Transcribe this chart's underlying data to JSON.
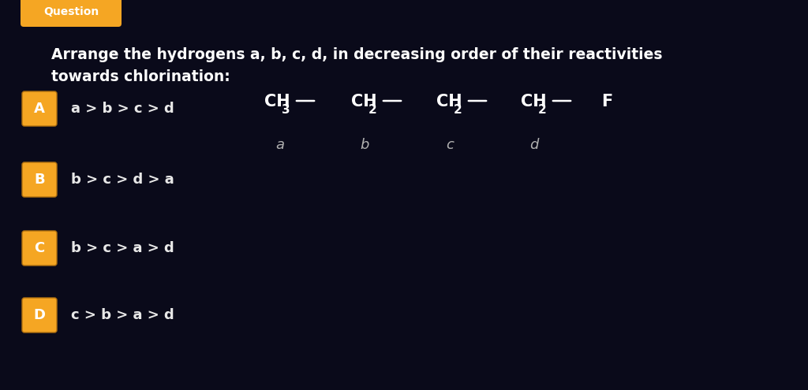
{
  "bg_color": "#0a0a1a",
  "question_text_line1": "Arrange the hydrogens a, b, c, d, in decreasing order of their reactivities",
  "question_text_line2": "towards chlorination:",
  "question_color": "#ffffff",
  "question_fontsize": 13.5,
  "options": [
    {
      "label": "A",
      "text": "a > b > c > d"
    },
    {
      "label": "B",
      "text": "b > c > d > a"
    },
    {
      "label": "C",
      "text": "b > c > a > d"
    },
    {
      "label": "D",
      "text": "c > b > a > d"
    }
  ],
  "option_label_bg": "#f5a623",
  "option_label_color": "#ffffff",
  "option_text_color": "#e8e8e8",
  "option_fontsize": 13,
  "label_fontsize": 13,
  "structure_color": "#ffffff",
  "structure_label_color": "#b0b0b0",
  "top_button_color": "#f5a623"
}
